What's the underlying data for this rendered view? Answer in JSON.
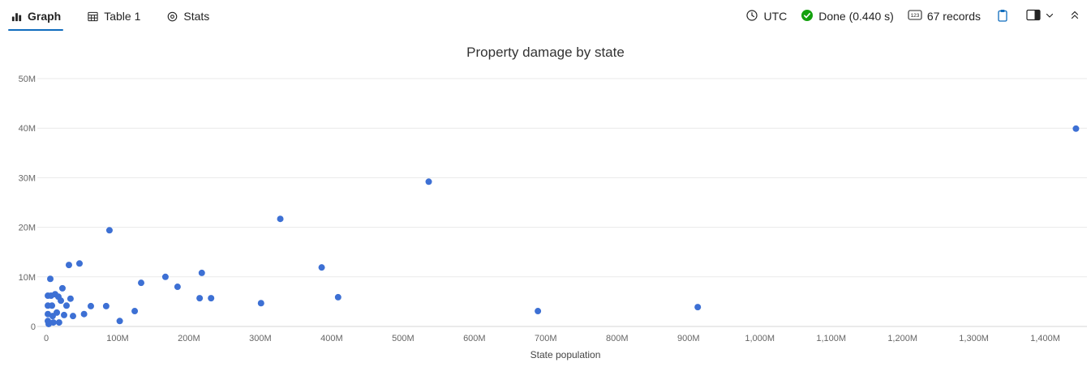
{
  "tabs": [
    {
      "label": "Graph",
      "icon": "bar-chart-icon",
      "active": true
    },
    {
      "label": "Table 1",
      "icon": "table-icon",
      "active": false
    },
    {
      "label": "Stats",
      "icon": "stats-icon",
      "active": false
    }
  ],
  "statusbar": {
    "timezone": "UTC",
    "status": "Done (0.440 s)",
    "records": "67 records",
    "icons": [
      "clock-icon",
      "check-circle-icon",
      "records-count-icon",
      "clipboard-icon",
      "layout-panel-icon",
      "chevron-down-icon",
      "double-chevron-up-icon"
    ]
  },
  "colors": {
    "accent": "#0f6cbd",
    "dot": "#3d70d4",
    "success": "#13a10e",
    "grid": "#e9e9e9",
    "zero_line": "#d6d6d6",
    "axis_text": "#666666",
    "title_text": "#333333"
  },
  "chart_data": {
    "type": "scatter",
    "title": "Property damage by state",
    "xlabel": "State population",
    "ylabel": "",
    "unit": "M",
    "grid": "horizontal-only",
    "legend": "none",
    "xlim": [
      0,
      1455
    ],
    "ylim": [
      0,
      50
    ],
    "xticks": [
      {
        "v": 0,
        "label": "0"
      },
      {
        "v": 100,
        "label": "100M"
      },
      {
        "v": 200,
        "label": "200M"
      },
      {
        "v": 300,
        "label": "300M"
      },
      {
        "v": 400,
        "label": "400M"
      },
      {
        "v": 500,
        "label": "500M"
      },
      {
        "v": 600,
        "label": "600M"
      },
      {
        "v": 700,
        "label": "700M"
      },
      {
        "v": 800,
        "label": "800M"
      },
      {
        "v": 900,
        "label": "900M"
      },
      {
        "v": 1000,
        "label": "1,000M"
      },
      {
        "v": 1100,
        "label": "1,100M"
      },
      {
        "v": 1200,
        "label": "1,200M"
      },
      {
        "v": 1300,
        "label": "1,300M"
      },
      {
        "v": 1400,
        "label": "1,400M"
      }
    ],
    "yticks": [
      {
        "v": 0,
        "label": "0"
      },
      {
        "v": 10,
        "label": "10M"
      },
      {
        "v": 20,
        "label": "20M"
      },
      {
        "v": 30,
        "label": "30M"
      },
      {
        "v": 40,
        "label": "40M"
      },
      {
        "v": 50,
        "label": "50M"
      }
    ],
    "points_format": [
      "state_population_M",
      "property_damage_M"
    ],
    "points": [
      [
        2.3,
        6.2
      ],
      [
        2.3,
        4.2
      ],
      [
        2.3,
        2.5
      ],
      [
        2.3,
        1.1
      ],
      [
        3.4,
        0.5
      ],
      [
        5.7,
        9.6
      ],
      [
        6.8,
        6.2
      ],
      [
        8.0,
        4.2
      ],
      [
        9.0,
        2.1
      ],
      [
        10.0,
        0.8
      ],
      [
        12.5,
        6.5
      ],
      [
        14.8,
        2.8
      ],
      [
        17.0,
        6.0
      ],
      [
        18.0,
        0.8
      ],
      [
        20.5,
        5.2
      ],
      [
        22.7,
        7.7
      ],
      [
        25.0,
        2.3
      ],
      [
        28.4,
        4.2
      ],
      [
        31.8,
        12.4
      ],
      [
        34.0,
        5.6
      ],
      [
        37.5,
        2.1
      ],
      [
        46.6,
        12.7
      ],
      [
        53.0,
        2.5
      ],
      [
        62.5,
        4.1
      ],
      [
        84.0,
        4.1
      ],
      [
        88.6,
        19.4
      ],
      [
        103.0,
        1.1
      ],
      [
        124.0,
        3.1
      ],
      [
        133.0,
        8.8
      ],
      [
        167.0,
        10.0
      ],
      [
        184.0,
        8.0
      ],
      [
        215.0,
        5.7
      ],
      [
        218.0,
        10.8
      ],
      [
        231.0,
        5.7
      ],
      [
        301.0,
        4.7
      ],
      [
        328.0,
        21.7
      ],
      [
        386.0,
        11.9
      ],
      [
        409.0,
        5.9
      ],
      [
        536.0,
        29.2
      ],
      [
        689.0,
        3.1
      ],
      [
        913.0,
        3.9
      ],
      [
        1443.0,
        39.9
      ]
    ]
  }
}
